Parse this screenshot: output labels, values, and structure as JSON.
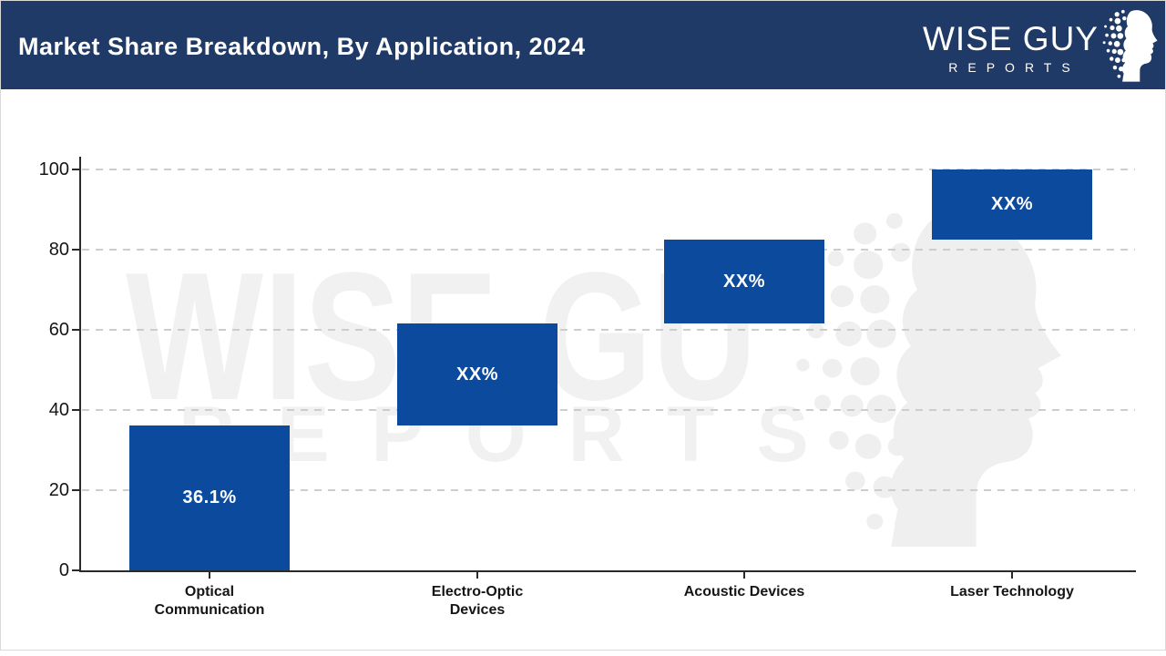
{
  "header": {
    "title": "Market Share Breakdown, By Application, 2024",
    "logo": {
      "name": "WISE GUY",
      "subtitle": "REPORTS"
    }
  },
  "watermark": {
    "line1": "WISE GU",
    "line2": "REPORTS"
  },
  "chart_data": {
    "type": "bar",
    "subtype": "floating-segment-waterfall",
    "title": "Market Share Breakdown, By Application, 2024",
    "categories": [
      "Optical Communication",
      "Electro-Optic Devices",
      "Acoustic Devices",
      "Laser Technology"
    ],
    "category_label_lines": [
      [
        "Optical",
        "Communication"
      ],
      [
        "Electro-Optic",
        "Devices"
      ],
      [
        "Acoustic Devices"
      ],
      [
        "Laser Technology"
      ]
    ],
    "segments": [
      {
        "category": "Optical Communication",
        "start": 0,
        "end": 36.1,
        "label": "36.1%"
      },
      {
        "category": "Electro-Optic Devices",
        "start": 36.1,
        "end": 61.6,
        "label": "XX%"
      },
      {
        "category": "Acoustic Devices",
        "start": 61.6,
        "end": 82.4,
        "label": "XX%"
      },
      {
        "category": "Laser Technology",
        "start": 82.4,
        "end": 100,
        "label": "XX%"
      }
    ],
    "xlabel": "",
    "ylabel": "",
    "ylim": [
      0,
      100
    ],
    "yticks": [
      0,
      20,
      40,
      60,
      80,
      100
    ],
    "grid": {
      "horizontal": true,
      "style": "dashed",
      "color": "#cdcdcd"
    },
    "legend": "none",
    "colors": {
      "bar": "#0c4a9e",
      "bar_label": "#ffffff",
      "axis": "#2a2a2a",
      "tick_label": "#151515",
      "header_bg": "#1f3a66",
      "watermark": "#f1f1f1"
    }
  }
}
